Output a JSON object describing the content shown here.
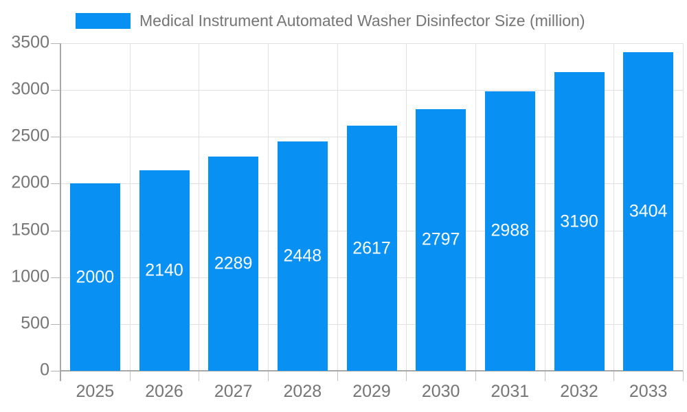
{
  "legend": {
    "label": "Medical Instrument Automated Washer Disinfector Size (million)",
    "swatch_color": "#0890f2"
  },
  "chart_data": {
    "type": "bar",
    "title": "Medical Instrument Automated Washer Disinfector Size (million)",
    "categories": [
      "2025",
      "2026",
      "2027",
      "2028",
      "2029",
      "2030",
      "2031",
      "2032",
      "2033"
    ],
    "series": [
      {
        "name": "Medical Instrument Automated Washer Disinfector Size (million)",
        "values": [
          2000,
          2140,
          2289,
          2448,
          2617,
          2797,
          2988,
          3190,
          3404
        ]
      }
    ],
    "xlabel": "",
    "ylabel": "",
    "ylim": [
      0,
      3500
    ],
    "ytick_step": 500,
    "ytick_labels": [
      "0",
      "500",
      "1000",
      "1500",
      "2000",
      "2500",
      "3000",
      "3500"
    ],
    "grid": true,
    "legend_position": "top-left",
    "value_label_position": "inside-center",
    "colors": {
      "bar": "#0890f2",
      "bar_label_text": "#ffffff",
      "grid_line": "#e0e0e0",
      "axis_line": "#a8a8a8",
      "tick_text": "#757575"
    }
  }
}
